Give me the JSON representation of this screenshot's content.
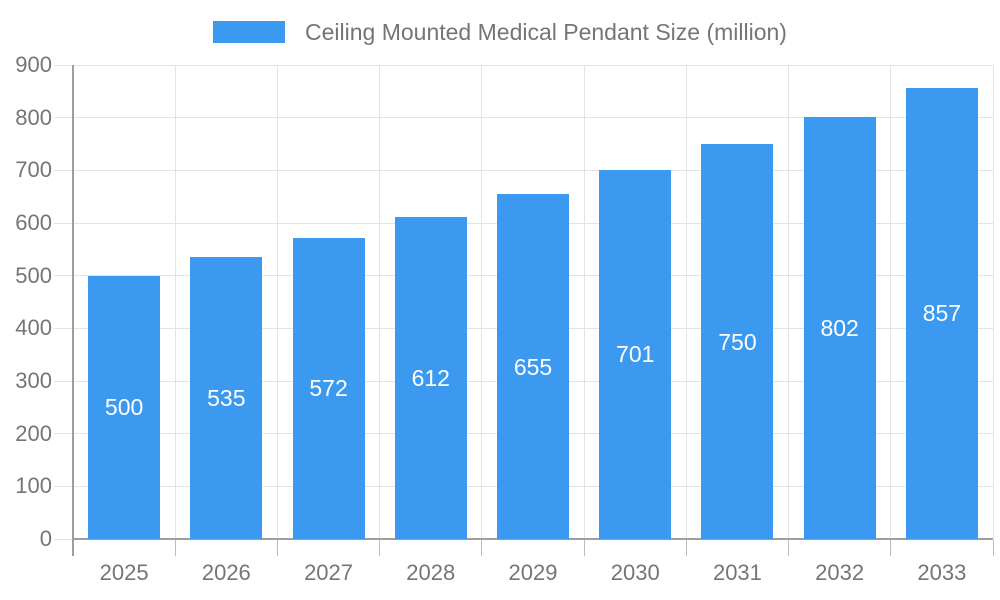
{
  "chart_data": {
    "type": "bar",
    "title": "Ceiling Mounted Medical Pendant Size (million)",
    "categories": [
      "2025",
      "2026",
      "2027",
      "2028",
      "2029",
      "2030",
      "2031",
      "2032",
      "2033"
    ],
    "series": [
      {
        "name": "Ceiling Mounted Medical Pendant Size (million)",
        "values": [
          500,
          535,
          572,
          612,
          655,
          701,
          750,
          802,
          857
        ]
      }
    ],
    "xlabel": "",
    "ylabel": "",
    "ylim": [
      0,
      900
    ],
    "yticks": [
      0,
      100,
      200,
      300,
      400,
      500,
      600,
      700,
      800,
      900
    ],
    "grid": true,
    "legend_position": "top-center",
    "value_label_position": "inside-middle"
  },
  "legend": {
    "label": "Ceiling Mounted Medical Pendant Size (million)"
  },
  "colors": {
    "bar": "#3B99F0",
    "grid": "#e3e3e3",
    "axis": "#9e9e9e",
    "tick": "#bdbdbd",
    "text": "#757575",
    "value_text": "#ffffff",
    "background": "#ffffff"
  }
}
